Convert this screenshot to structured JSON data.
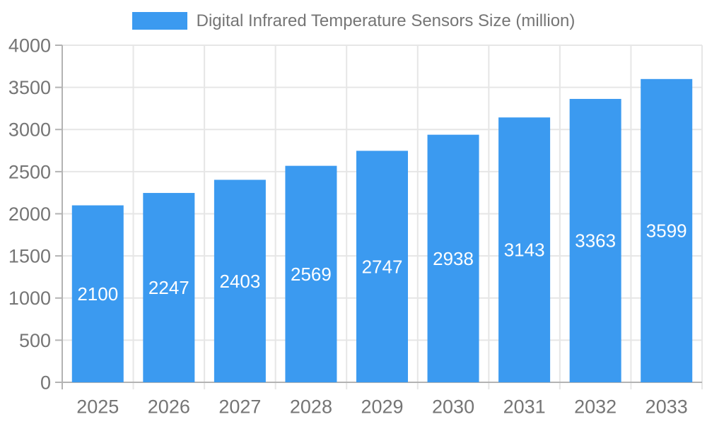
{
  "legend": {
    "label": "Digital Infrared Temperature Sensors Size (million)"
  },
  "chart_data": {
    "type": "bar",
    "title": "",
    "xlabel": "",
    "ylabel": "",
    "categories": [
      "2025",
      "2026",
      "2027",
      "2028",
      "2029",
      "2030",
      "2031",
      "2032",
      "2033"
    ],
    "series": [
      {
        "name": "Digital Infrared Temperature Sensors Size (million)",
        "values": [
          2100,
          2247,
          2403,
          2569,
          2747,
          2938,
          3143,
          3363,
          3599
        ]
      }
    ],
    "value_labels_shown": true,
    "ylim": [
      0,
      4000
    ],
    "yticks": [
      0,
      500,
      1000,
      1500,
      2000,
      2500,
      3000,
      3500,
      4000
    ],
    "grid": true,
    "legend_position": "top",
    "colors": {
      "bar": "#3B9AF0",
      "value_label": "#FFFFFF",
      "axis_text": "#757575",
      "grid_line": "#E6E6E6",
      "axis_line": "#B3B3B3",
      "background": "#FFFFFF"
    }
  }
}
